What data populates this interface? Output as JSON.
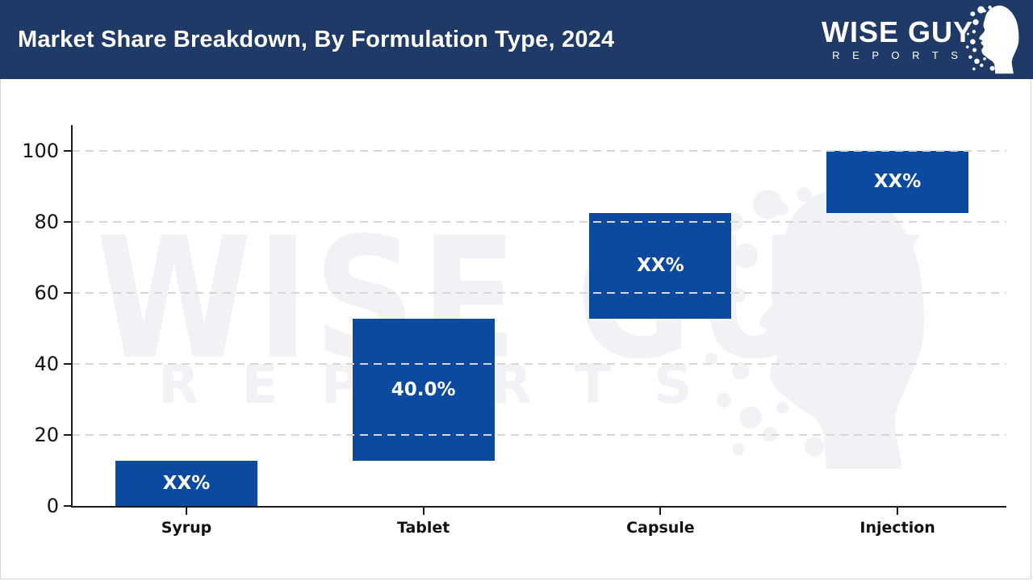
{
  "header": {
    "title": "Market Share Breakdown, By Formulation Type, 2024",
    "background_color": "#1f3a67"
  },
  "logo": {
    "line1": "WISE GUY",
    "line2": "R E P O R T S"
  },
  "watermark": {
    "line1": "WISE GUY",
    "line2": "R E P O R T S"
  },
  "chart_data": {
    "type": "bar",
    "subtype": "waterfall",
    "title": "Market Share Breakdown, By Formulation Type, 2024",
    "categories": [
      "Syrup",
      "Tablet",
      "Capsule",
      "Injection"
    ],
    "segments": [
      {
        "category": "Syrup",
        "start": 0,
        "end": 12.7,
        "label": "XX%"
      },
      {
        "category": "Tablet",
        "start": 12.7,
        "end": 52.7,
        "label": "40.0%"
      },
      {
        "category": "Capsule",
        "start": 52.7,
        "end": 82.6,
        "label": "XX%"
      },
      {
        "category": "Injection",
        "start": 82.6,
        "end": 100,
        "label": "XX%"
      }
    ],
    "yticks": [
      0,
      20,
      40,
      60,
      80,
      100
    ],
    "ylim": [
      0,
      107
    ],
    "xlabel": "",
    "ylabel": "",
    "bar_color": "#0c4aa0",
    "bar_label_color": "#ffffff",
    "grid": "horizontal-dashed",
    "legend": false
  }
}
